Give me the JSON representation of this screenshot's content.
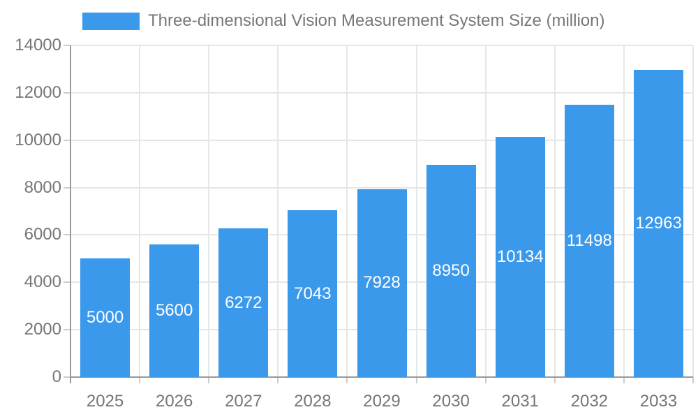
{
  "chart_data": {
    "type": "bar",
    "title": "Three-dimensional Vision Measurement System Size (million)",
    "legend": {
      "label": "Three-dimensional Vision Measurement System Size (million)",
      "position": "top-left"
    },
    "categories": [
      "2025",
      "2026",
      "2027",
      "2028",
      "2029",
      "2030",
      "2031",
      "2032",
      "2033"
    ],
    "series": [
      {
        "name": "Three-dimensional Vision Measurement System Size (million)",
        "values": [
          5000,
          5600,
          6272,
          7043,
          7928,
          8950,
          10134,
          11498,
          12963
        ]
      }
    ],
    "value_labels": [
      "5000",
      "5600",
      "6272",
      "7043",
      "7928",
      "8950",
      "10134",
      "11498",
      "12963"
    ],
    "xlabel": "",
    "ylabel": "",
    "ylim": [
      0,
      14000
    ],
    "ytick_step": 2000,
    "ytick_labels": [
      "0",
      "2000",
      "4000",
      "6000",
      "8000",
      "10000",
      "12000",
      "14000"
    ],
    "grid": "horizontal and vertical light gray gridlines",
    "colors": {
      "bar": "#3B99EC",
      "bar_label_text": "#FFFFFF",
      "axis_line": "#999999",
      "tick_line": "#CCCCCC",
      "gridline": "#E6E6E6",
      "axis_label_text": "#757575",
      "legend_text": "#777777",
      "background": "#FFFFFF"
    }
  }
}
